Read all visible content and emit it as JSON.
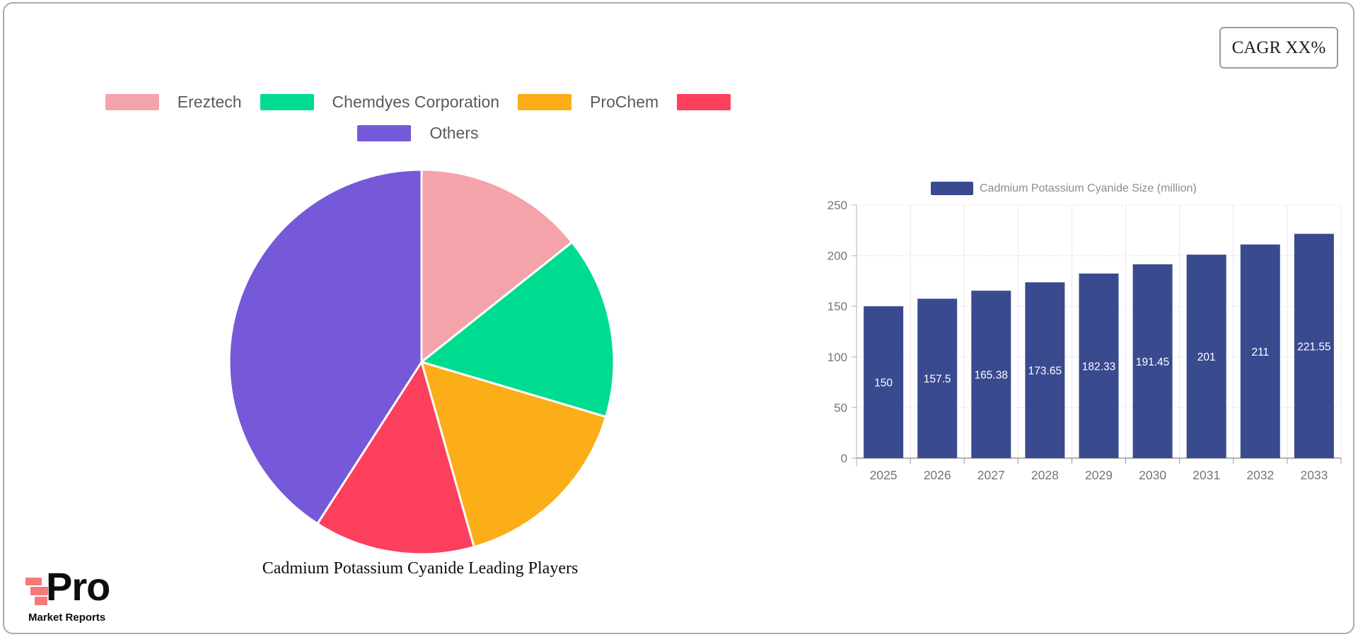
{
  "cagr_box": {
    "label": "CAGR XX%"
  },
  "logo": {
    "brand": "Pro",
    "subtitle": "Market Reports",
    "bar_color": "#f5797c"
  },
  "colors": {
    "frame_border": "#ababab",
    "legend_text": "#5a5a5a",
    "axis_text": "#757575",
    "bar_value_text": "#ffffff",
    "gridline": "#dddddd",
    "axis_line": "#cccccc",
    "baseline": "#999999"
  },
  "chart_data": [
    {
      "type": "pie",
      "title": "Cadmium Potassium Cyanide Leading Players",
      "labels": [
        "Ereztech",
        "Chemdyes Corporation",
        "ProChem",
        "",
        "Others"
      ],
      "values_pct": [
        14.3,
        15.3,
        16.0,
        13.5,
        40.9
      ],
      "colors": [
        "#F5A3AB",
        "#00DC8F",
        "#FBAE17",
        "#FD3F5E",
        "#7559D8"
      ],
      "start_angle": "12 o'clock",
      "direction": "clockwise",
      "legend_rows": [
        [
          0,
          1,
          2,
          3
        ],
        [
          4
        ]
      ],
      "slice_border_color": "#ffffff"
    },
    {
      "type": "bar",
      "series_name": "Cadmium Potassium Cyanide Size (million)",
      "categories": [
        "2025",
        "2026",
        "2027",
        "2028",
        "2029",
        "2030",
        "2031",
        "2032",
        "2033"
      ],
      "values": [
        150,
        157.5,
        165.38,
        173.65,
        182.33,
        191.45,
        201,
        211,
        221.55
      ],
      "value_labels": [
        "150",
        "157.5",
        "165.38",
        "173.65",
        "182.33",
        "191.45",
        "201",
        "211",
        "221.55"
      ],
      "bar_color": "#3A4A8F",
      "ylabel": "",
      "xlabel": "",
      "ylim": [
        0,
        250
      ],
      "yticks": [
        0,
        50,
        100,
        150,
        200,
        250
      ],
      "grid": "horizontal dotted + vertical category split lines",
      "legend_position": "top",
      "value_label_position": "inside-center-white"
    }
  ]
}
